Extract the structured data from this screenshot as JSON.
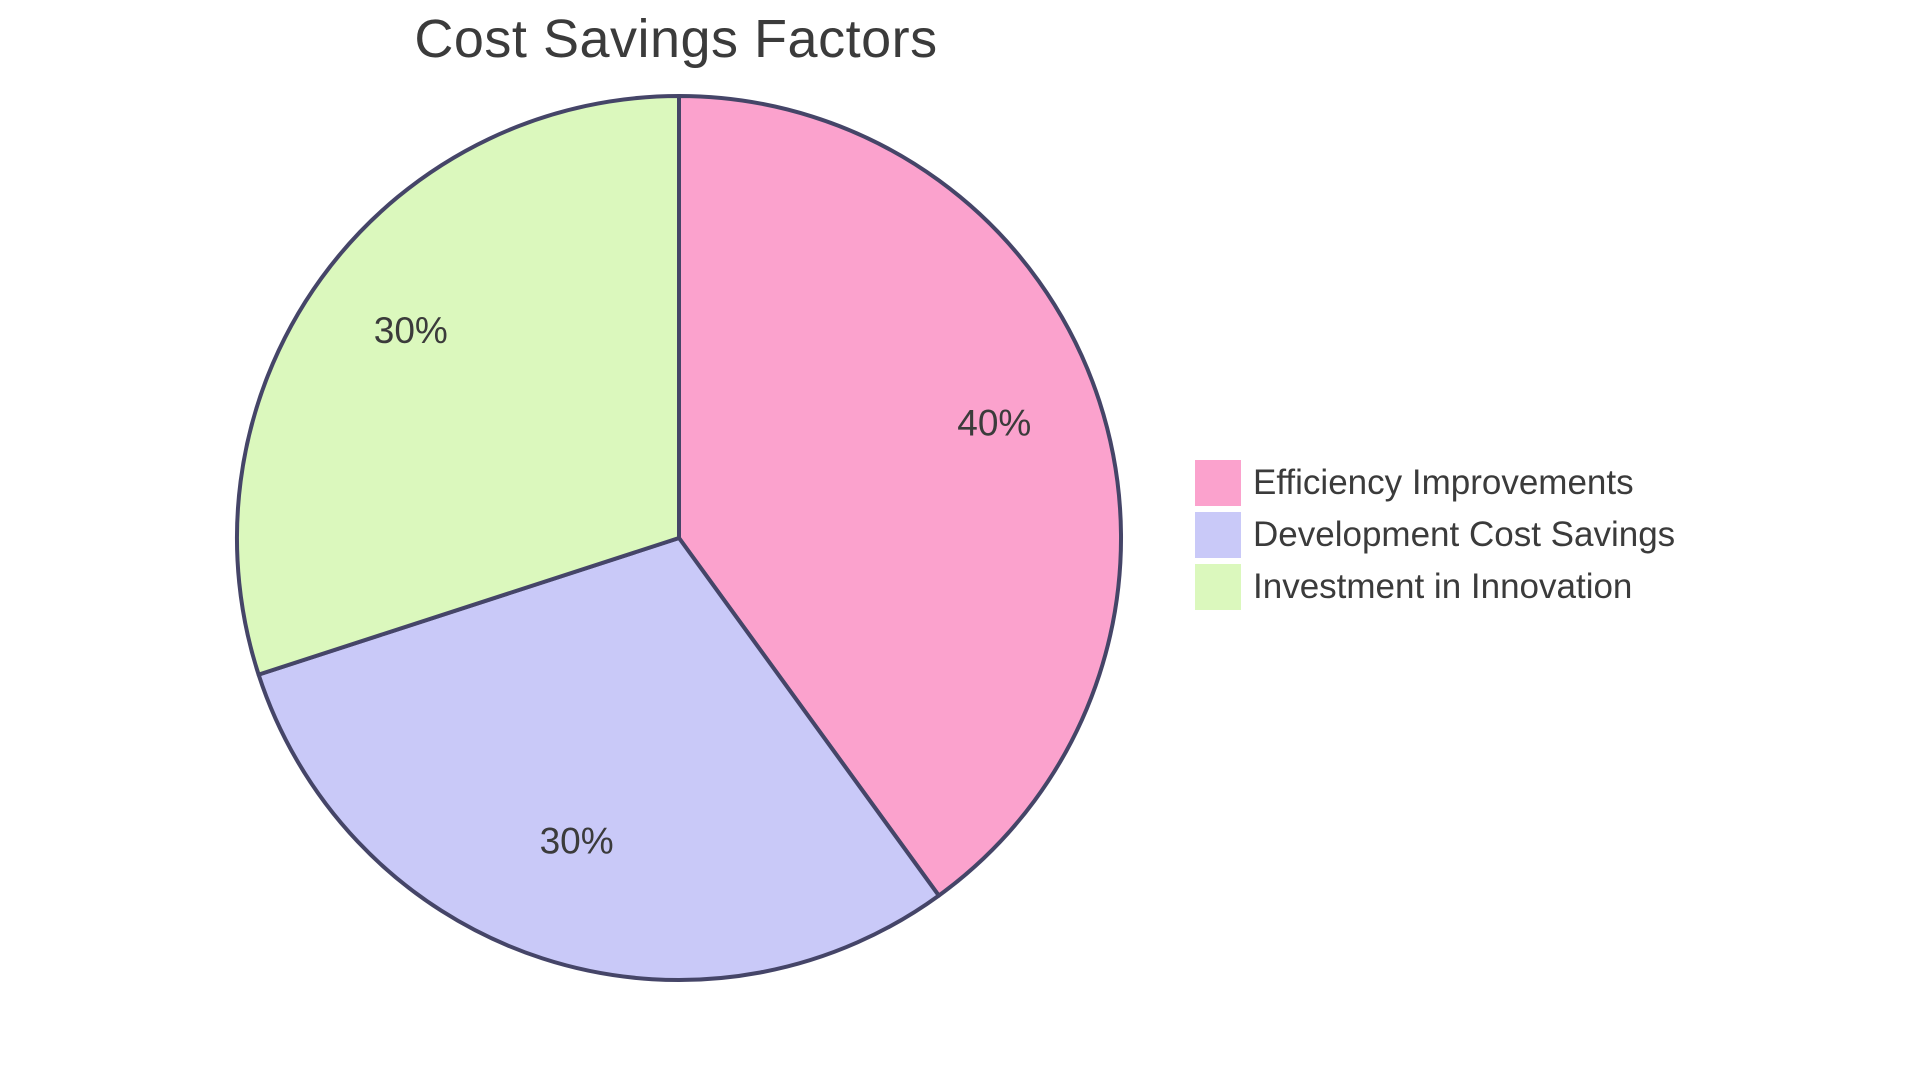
{
  "chart_data": {
    "type": "pie",
    "title": "Cost Savings Factors",
    "categories": [
      "Efficiency Improvements",
      "Development Cost Savings",
      "Investment in Innovation"
    ],
    "values": [
      40,
      30,
      30
    ],
    "slices": [
      {
        "label": "Efficiency Improvements",
        "value": 40,
        "display_label": "40%",
        "color": "#FBA2CD"
      },
      {
        "label": "Development Cost Savings",
        "value": 30,
        "display_label": "30%",
        "color": "#C9C9F8"
      },
      {
        "label": "Investment in Innovation",
        "value": 30,
        "display_label": "30%",
        "color": "#DBF8BD"
      }
    ],
    "start_angle_deg": 0,
    "direction": "clockwise",
    "legend_position": "right",
    "stroke_color": "#454568",
    "label_color": "#3B3B3B",
    "title_color": "#3B3B3B",
    "background_color": "#FFFFFF"
  }
}
